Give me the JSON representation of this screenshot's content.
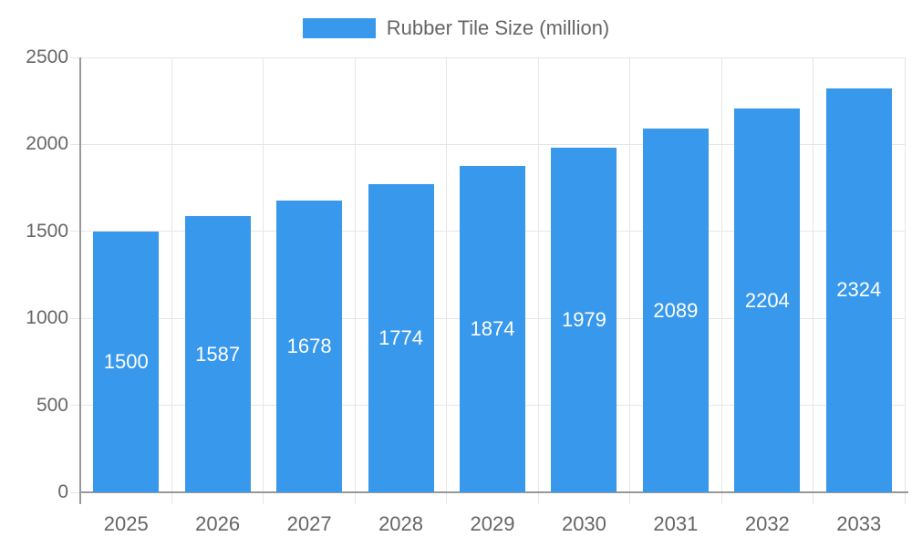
{
  "chart_data": {
    "type": "bar",
    "title": "Rubber Tile Size (million)",
    "categories": [
      "2025",
      "2026",
      "2027",
      "2028",
      "2029",
      "2030",
      "2031",
      "2032",
      "2033"
    ],
    "values": [
      1500,
      1587,
      1678,
      1774,
      1874,
      1979,
      2089,
      2204,
      2324
    ],
    "xlabel": "",
    "ylabel": "",
    "ylim": [
      0,
      2500
    ],
    "yticks": [
      0,
      500,
      1000,
      1500,
      2000,
      2500
    ],
    "grid": true,
    "legend_position": "top-center",
    "value_labels": "inside-center-white",
    "colors": {
      "bar": "#3898ec",
      "grid_line": "#e6e6e6",
      "axis_line": "#999999",
      "tick_label": "#666666",
      "legend_text": "#666666",
      "value_label": "#ffffff",
      "background": "#ffffff"
    }
  },
  "legend": {
    "label": "Rubber Tile Size (million)"
  }
}
